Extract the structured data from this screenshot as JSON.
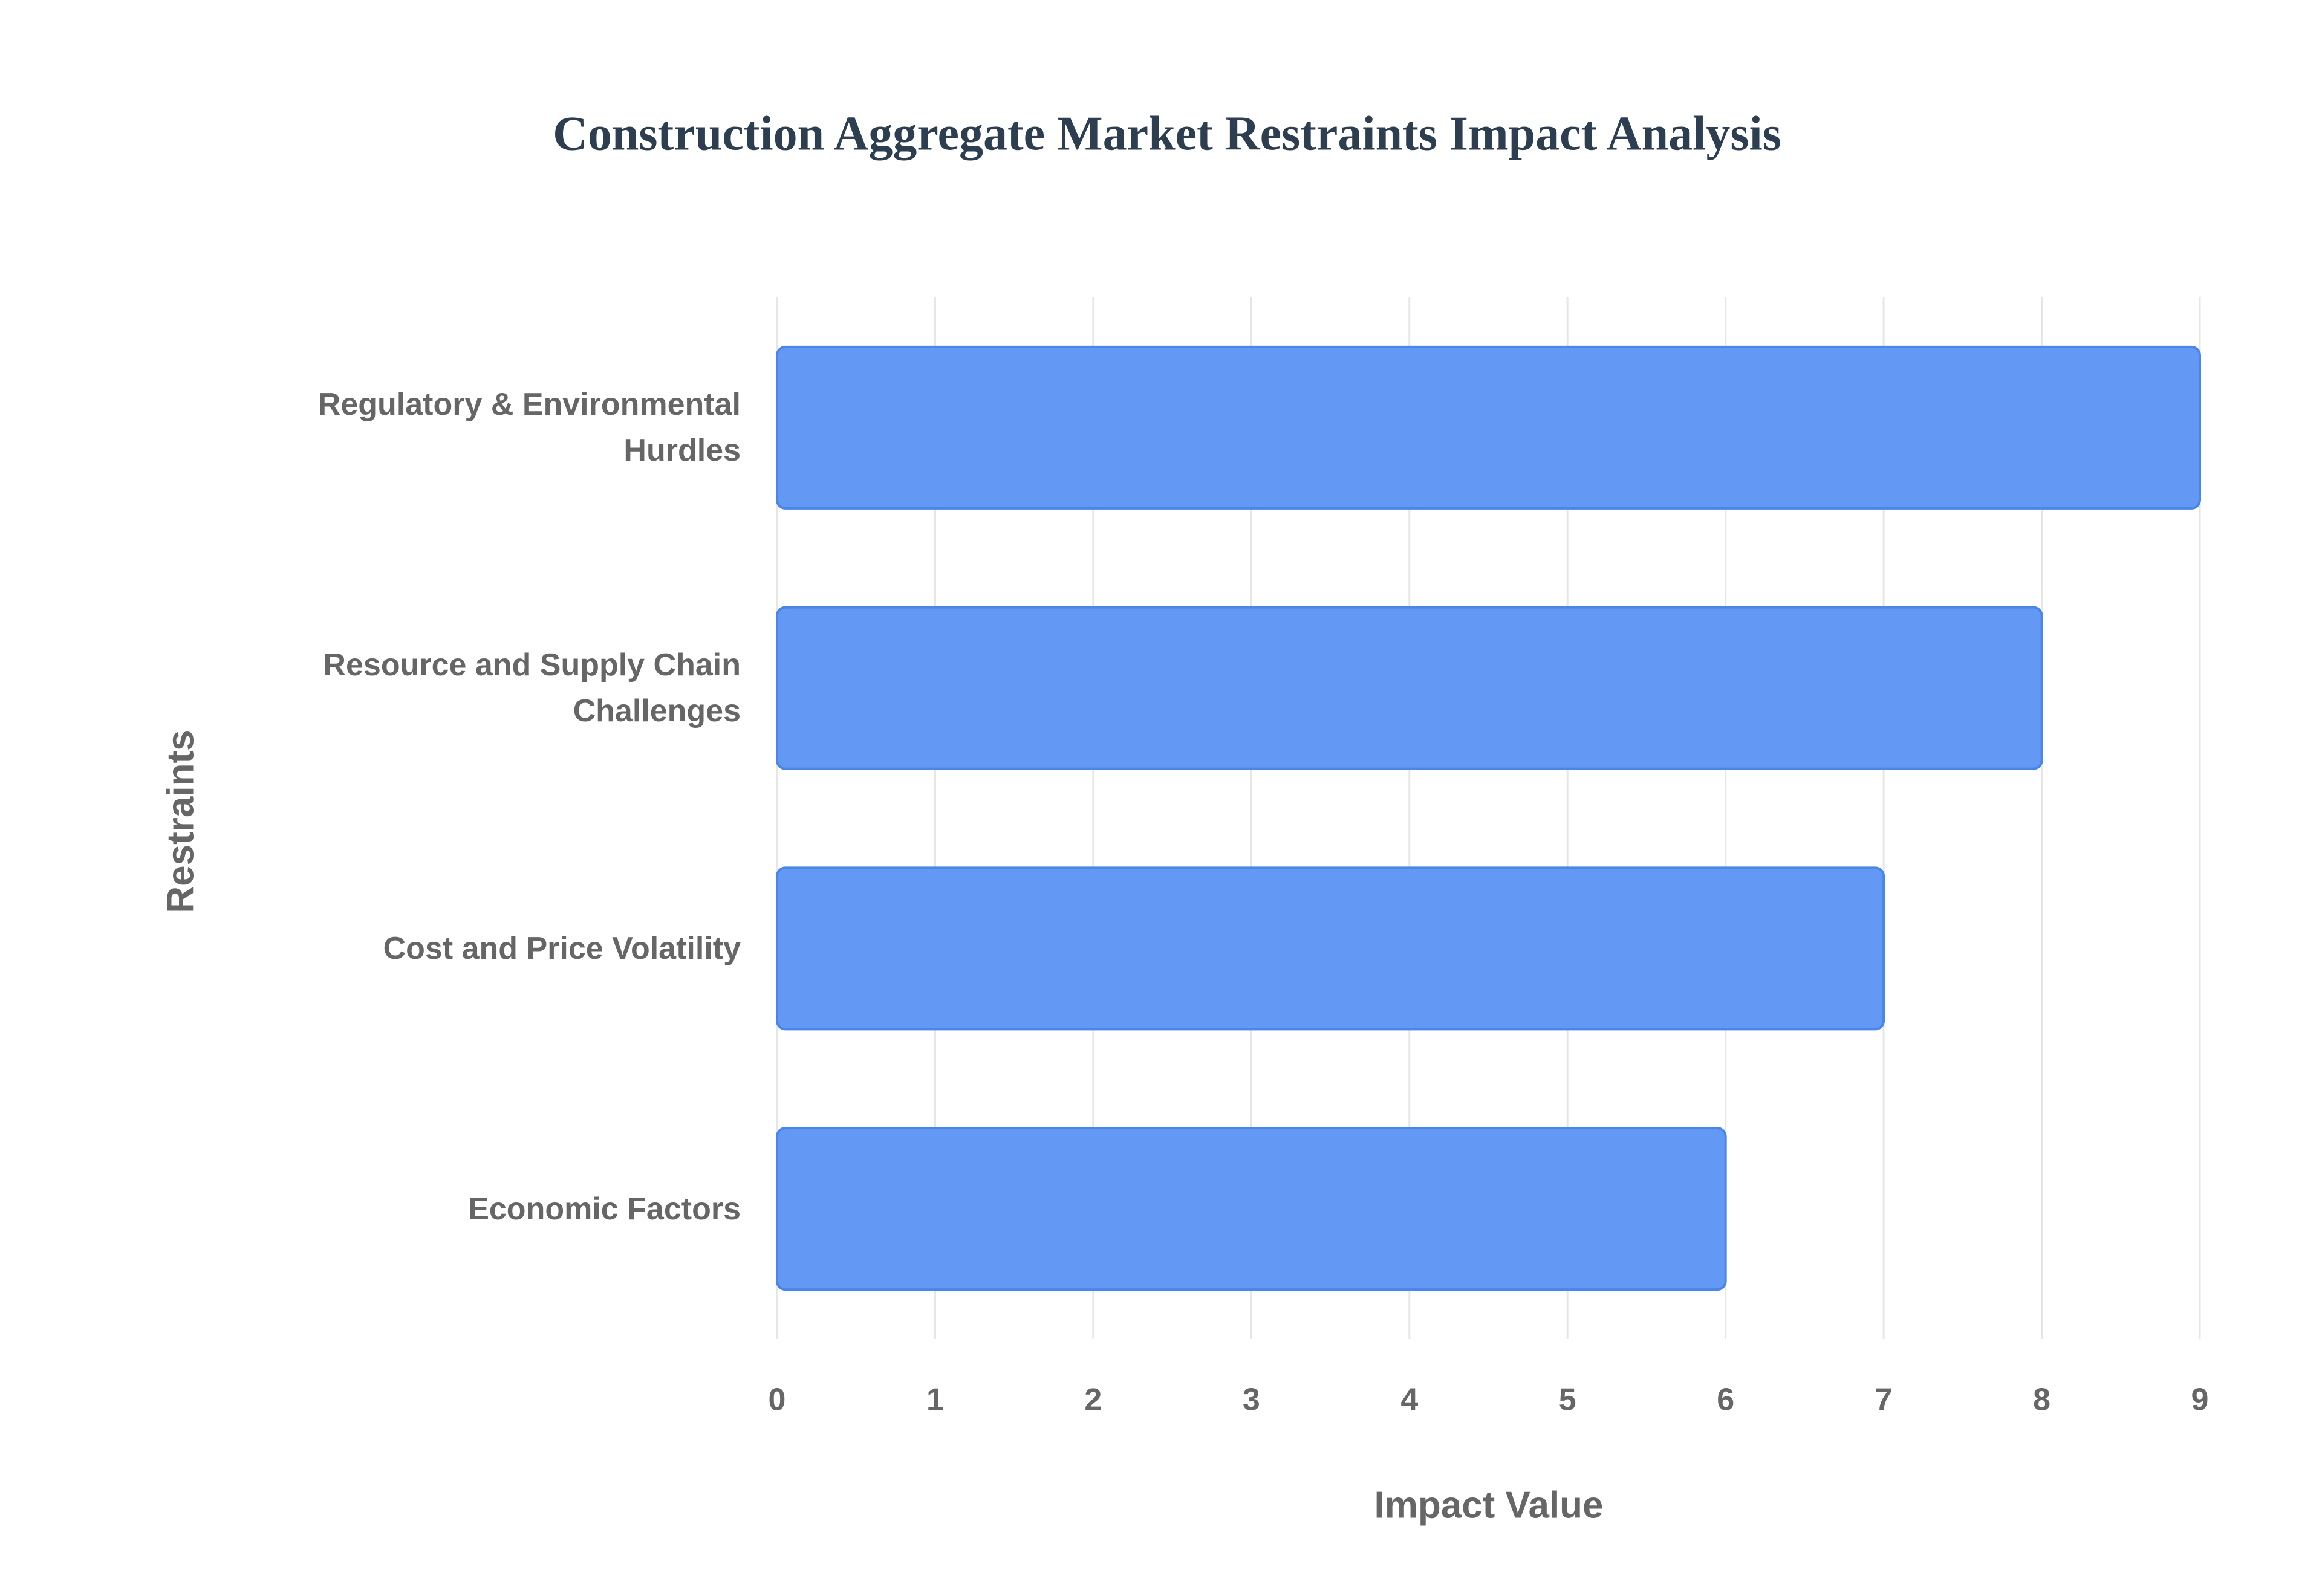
{
  "chart_data": {
    "type": "bar",
    "orientation": "horizontal",
    "title": "Construction Aggregate Market Restraints Impact Analysis",
    "x_label": "Impact Value",
    "y_label": "Restraints",
    "categories": [
      "Regulatory & Environmental Hurdles",
      "Resource and Supply Chain Challenges",
      "Cost and Price Volatility",
      "Economic Factors"
    ],
    "values": [
      9,
      8,
      7,
      6
    ],
    "color": "#6399f5",
    "xlim": [
      0,
      9
    ],
    "xticks": [
      0,
      1,
      2,
      3,
      4,
      5,
      6,
      7,
      8,
      9
    ],
    "grid": true
  }
}
